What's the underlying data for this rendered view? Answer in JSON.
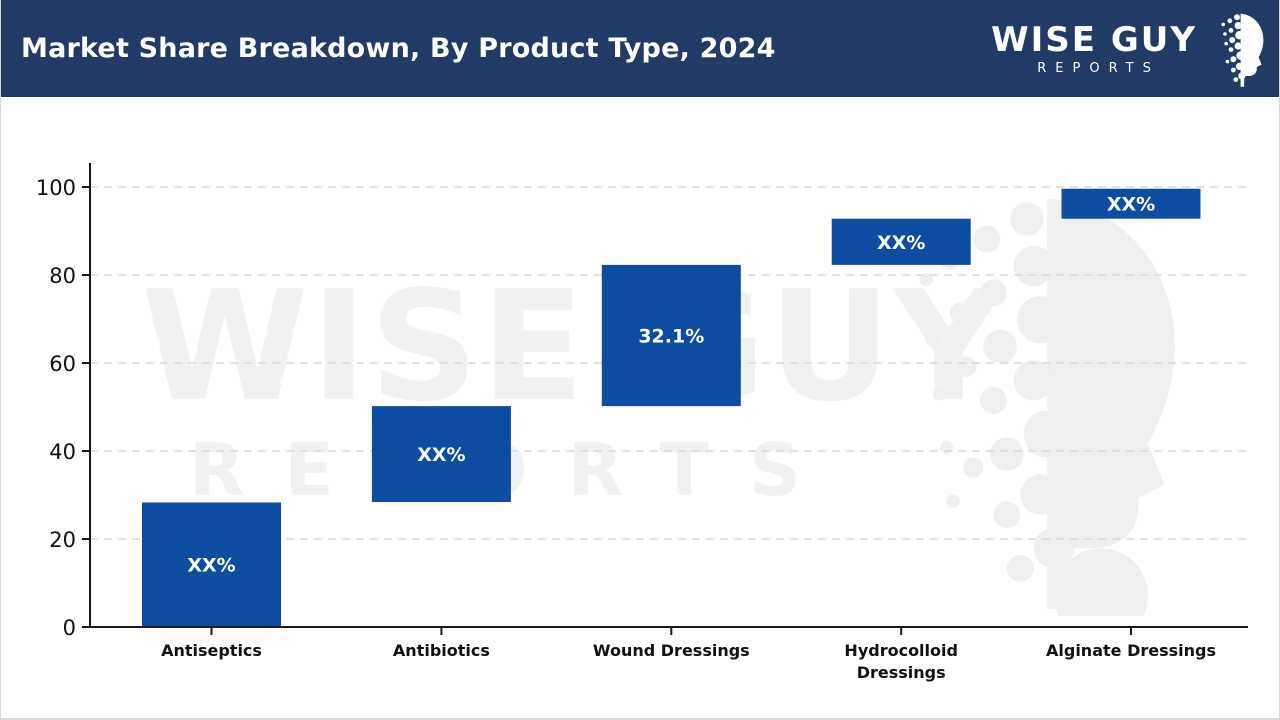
{
  "header": {
    "title": "Market Share Breakdown, By Product Type, 2024",
    "background_color": "#213a66",
    "logo": {
      "line1": "WISE GUY",
      "line2": "REPORTS"
    }
  },
  "watermark": {
    "line1": "WISE GUY",
    "line2": "REPORTS",
    "color": "#f1f1f1"
  },
  "icons": {
    "logo_head": "head-profile-dots",
    "watermark_head": "head-profile-dots"
  },
  "chart_data": {
    "type": "bar",
    "variant": "waterfall",
    "title": "Market Share Breakdown, By Product Type, 2024",
    "categories": [
      "Antiseptics",
      "Antibiotics",
      "Wound Dressings",
      "Hydrocolloid Dressings",
      "Alginate Dressings"
    ],
    "category_tick_lines": [
      [
        "Antiseptics"
      ],
      [
        "Antibiotics"
      ],
      [
        "Wound Dressings"
      ],
      [
        "Hydrocolloid",
        "Dressings"
      ],
      [
        "Alginate Dressings"
      ]
    ],
    "segments": [
      {
        "category": "Antiseptics",
        "start": 0,
        "end": 28.3,
        "label": "XX%"
      },
      {
        "category": "Antibiotics",
        "start": 28.4,
        "end": 50.2,
        "label": "XX%"
      },
      {
        "category": "Wound Dressings",
        "start": 50.2,
        "end": 82.3,
        "label": "32.1%"
      },
      {
        "category": "Hydrocolloid Dressings",
        "start": 82.3,
        "end": 92.8,
        "label": "XX%"
      },
      {
        "category": "Alginate Dressings",
        "start": 92.8,
        "end": 99.6,
        "label": "XX%"
      }
    ],
    "yticks": [
      0,
      20,
      40,
      60,
      80,
      100
    ],
    "ylim": [
      0,
      105.5
    ],
    "grid": {
      "axis": "y",
      "style": "dashed",
      "color": "#d9d9d9"
    },
    "legend": "none",
    "bar_color": "#0d4da1",
    "bar_label_color": "#ffffff",
    "axis_color": "#1a1a1a",
    "tick_label_color": "#111111"
  }
}
